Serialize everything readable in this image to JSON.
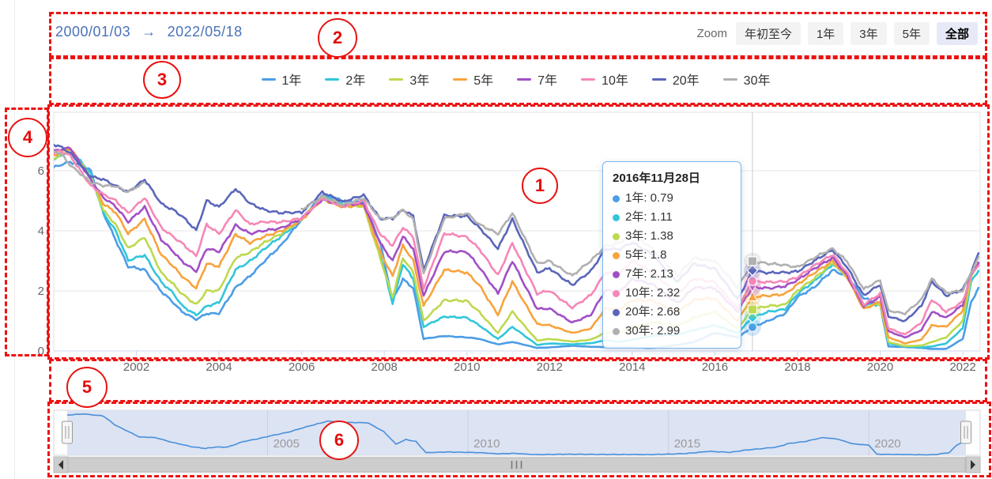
{
  "header": {
    "date_from": "2000/01/03",
    "arrow": "→",
    "date_to": "2022/05/18",
    "zoom_label": "Zoom",
    "zoom_buttons": [
      {
        "id": "ytd",
        "label": "年初至今",
        "selected": false
      },
      {
        "id": "1y",
        "label": "1年",
        "selected": false
      },
      {
        "id": "3y",
        "label": "3年",
        "selected": false
      },
      {
        "id": "5y",
        "label": "5年",
        "selected": false
      },
      {
        "id": "all",
        "label": "全部",
        "selected": true
      }
    ]
  },
  "annotations": {
    "labels": [
      "1",
      "2",
      "3",
      "4",
      "5",
      "6"
    ]
  },
  "chart_data": {
    "type": "line",
    "title": "",
    "xlabel": "",
    "ylabel": "",
    "x_axis": {
      "range": [
        2000.0,
        2022.42
      ],
      "ticks": [
        2002,
        2004,
        2006,
        2008,
        2010,
        2012,
        2014,
        2016,
        2018,
        2020,
        2022
      ]
    },
    "y_axis": {
      "range": [
        0,
        7.9
      ],
      "ticks": [
        0,
        2,
        4,
        6
      ]
    },
    "grid": "horizontal",
    "legend_position": "top-center",
    "x": [
      2000.0,
      2000.15,
      2000.4,
      2000.9,
      2001.2,
      2001.5,
      2001.8,
      2002.2,
      2002.6,
      2002.9,
      2003.1,
      2003.45,
      2003.7,
      2004.0,
      2004.4,
      2004.75,
      2005.1,
      2005.5,
      2006.0,
      2006.5,
      2007.0,
      2007.5,
      2007.9,
      2008.2,
      2008.45,
      2008.7,
      2008.95,
      2009.45,
      2010.0,
      2010.3,
      2010.75,
      2011.1,
      2011.7,
      2012.0,
      2012.55,
      2013.0,
      2013.35,
      2013.7,
      2014.0,
      2014.5,
      2015.1,
      2015.5,
      2016.0,
      2016.55,
      2016.91,
      2017.3,
      2017.7,
      2018.0,
      2018.4,
      2018.85,
      2019.2,
      2019.6,
      2020.0,
      2020.2,
      2020.6,
      2021.0,
      2021.25,
      2021.6,
      2022.0,
      2022.2,
      2022.38
    ],
    "series": [
      {
        "id": "y1",
        "name": "1年",
        "color": "#4c9de6",
        "values": [
          6.12,
          6.2,
          6.3,
          6.0,
          4.6,
          3.7,
          2.8,
          2.7,
          2.0,
          1.6,
          1.3,
          1.05,
          1.25,
          1.25,
          2.1,
          2.5,
          3.0,
          3.5,
          4.4,
          5.2,
          5.0,
          4.95,
          3.6,
          1.7,
          2.4,
          2.1,
          0.4,
          0.5,
          0.45,
          0.4,
          0.22,
          0.3,
          0.1,
          0.12,
          0.17,
          0.14,
          0.13,
          0.12,
          0.12,
          0.1,
          0.2,
          0.3,
          0.6,
          0.45,
          0.79,
          1.0,
          1.25,
          1.8,
          2.1,
          2.7,
          2.5,
          1.75,
          1.55,
          0.15,
          0.13,
          0.1,
          0.07,
          0.07,
          0.4,
          1.6,
          2.1
        ]
      },
      {
        "id": "y2",
        "name": "2年",
        "color": "#33c6da",
        "values": [
          6.38,
          6.5,
          6.7,
          5.9,
          4.6,
          4.0,
          3.0,
          3.2,
          2.3,
          1.9,
          1.5,
          1.2,
          1.5,
          1.6,
          2.7,
          3.0,
          3.4,
          3.8,
          4.4,
          5.15,
          4.9,
          4.85,
          3.2,
          1.6,
          2.9,
          2.4,
          0.8,
          1.15,
          1.1,
          0.85,
          0.4,
          0.8,
          0.2,
          0.25,
          0.22,
          0.26,
          0.35,
          0.3,
          0.38,
          0.5,
          0.55,
          0.7,
          0.85,
          0.6,
          1.11,
          1.3,
          1.4,
          1.9,
          2.3,
          2.9,
          2.5,
          1.55,
          1.55,
          0.25,
          0.14,
          0.12,
          0.15,
          0.25,
          0.75,
          2.3,
          2.67
        ]
      },
      {
        "id": "y3",
        "name": "3年",
        "color": "#bdd94e",
        "values": [
          6.42,
          6.5,
          6.7,
          5.8,
          4.7,
          4.2,
          3.4,
          3.8,
          2.6,
          2.2,
          1.9,
          1.55,
          2.0,
          2.0,
          3.1,
          3.3,
          3.6,
          3.9,
          4.4,
          5.1,
          4.85,
          4.8,
          3.1,
          1.8,
          3.1,
          2.6,
          1.0,
          1.7,
          1.65,
          1.3,
          0.6,
          1.3,
          0.35,
          0.4,
          0.31,
          0.38,
          0.6,
          0.6,
          0.77,
          0.95,
          0.85,
          1.1,
          1.3,
          0.75,
          1.38,
          1.5,
          1.55,
          2.0,
          2.4,
          2.95,
          2.45,
          1.45,
          1.6,
          0.3,
          0.16,
          0.18,
          0.3,
          0.45,
          1.0,
          2.5,
          2.86
        ]
      },
      {
        "id": "y5",
        "name": "5年",
        "color": "#f8a33d",
        "values": [
          6.5,
          6.6,
          6.75,
          5.75,
          4.9,
          4.6,
          3.9,
          4.4,
          3.2,
          2.8,
          2.5,
          2.1,
          2.9,
          2.8,
          3.9,
          3.6,
          3.8,
          4.0,
          4.35,
          5.05,
          4.8,
          4.85,
          3.3,
          2.5,
          3.5,
          3.0,
          1.5,
          2.7,
          2.6,
          2.2,
          1.2,
          2.3,
          0.9,
          0.85,
          0.6,
          0.75,
          1.4,
          1.4,
          1.7,
          1.65,
          1.3,
          1.7,
          1.75,
          1.0,
          1.8,
          1.85,
          1.9,
          2.2,
          2.6,
          3.0,
          2.45,
          1.4,
          1.65,
          0.45,
          0.25,
          0.38,
          0.85,
          0.8,
          1.35,
          2.55,
          2.89
        ]
      },
      {
        "id": "y7",
        "name": "7年",
        "color": "#a14fc6",
        "values": [
          6.65,
          6.7,
          6.75,
          5.7,
          5.1,
          4.8,
          4.3,
          4.8,
          3.7,
          3.3,
          3.0,
          2.65,
          3.4,
          3.3,
          4.2,
          3.9,
          4.0,
          4.1,
          4.4,
          5.05,
          4.85,
          4.9,
          3.6,
          3.0,
          3.8,
          3.4,
          1.85,
          3.3,
          3.3,
          2.8,
          1.9,
          3.0,
          1.4,
          1.4,
          0.95,
          1.2,
          2.0,
          2.0,
          2.4,
          2.2,
          1.6,
          2.1,
          2.1,
          1.3,
          2.13,
          2.1,
          2.15,
          2.35,
          2.75,
          3.1,
          2.5,
          1.5,
          1.8,
          0.65,
          0.45,
          0.7,
          1.3,
          1.1,
          1.55,
          2.6,
          2.93
        ]
      },
      {
        "id": "y10",
        "name": "10年",
        "color": "#f687b7",
        "values": [
          6.58,
          6.65,
          6.5,
          5.5,
          5.2,
          5.0,
          4.6,
          5.1,
          4.1,
          3.8,
          3.6,
          3.15,
          4.2,
          3.9,
          4.7,
          4.2,
          4.3,
          4.3,
          4.4,
          5.1,
          4.8,
          5.0,
          3.9,
          3.5,
          4.1,
          3.8,
          2.1,
          3.9,
          3.8,
          3.4,
          2.5,
          3.6,
          1.9,
          2.0,
          1.45,
          1.85,
          2.6,
          2.6,
          3.0,
          2.6,
          1.9,
          2.4,
          2.3,
          1.4,
          2.32,
          2.3,
          2.3,
          2.45,
          2.85,
          3.2,
          2.6,
          1.55,
          1.9,
          0.75,
          0.55,
          0.95,
          1.7,
          1.3,
          1.65,
          2.5,
          2.89
        ]
      },
      {
        "id": "y20",
        "name": "20年",
        "color": "#5a66bb",
        "values": [
          6.86,
          6.8,
          6.6,
          5.8,
          5.7,
          5.5,
          5.3,
          5.7,
          4.9,
          4.7,
          4.5,
          4.0,
          5.0,
          4.8,
          5.4,
          4.9,
          4.7,
          4.6,
          4.6,
          5.3,
          4.95,
          5.2,
          4.4,
          4.4,
          4.7,
          4.5,
          2.7,
          4.5,
          4.5,
          4.1,
          3.4,
          4.4,
          2.6,
          2.75,
          2.2,
          2.65,
          3.4,
          3.4,
          3.6,
          3.2,
          2.3,
          2.9,
          2.75,
          1.7,
          2.68,
          2.6,
          2.6,
          2.65,
          3.0,
          3.35,
          2.8,
          1.85,
          2.2,
          1.15,
          1.0,
          1.5,
          2.3,
          1.85,
          2.05,
          2.6,
          3.26
        ]
      },
      {
        "id": "y30",
        "name": "30年",
        "color": "#b0b0b0",
        "values": [
          6.63,
          6.6,
          6.2,
          5.6,
          5.5,
          5.5,
          5.3,
          5.6,
          null,
          null,
          null,
          null,
          null,
          null,
          null,
          null,
          null,
          null,
          4.7,
          5.15,
          4.85,
          5.1,
          4.4,
          4.4,
          4.7,
          4.4,
          2.55,
          4.4,
          4.6,
          4.2,
          3.9,
          4.6,
          2.9,
          3.0,
          2.5,
          3.0,
          3.5,
          3.6,
          3.9,
          3.4,
          2.5,
          3.1,
          3.0,
          2.1,
          2.99,
          2.9,
          2.85,
          2.8,
          3.1,
          3.4,
          3.0,
          2.05,
          2.35,
          1.35,
          1.25,
          1.7,
          2.4,
          1.95,
          2.0,
          2.6,
          3.1
        ]
      }
    ],
    "crosshair": {
      "x": 2016.91,
      "date_label": "2016年11月28日",
      "values": [
        0.79,
        1.11,
        1.38,
        1.8,
        2.13,
        2.32,
        2.68,
        2.99
      ]
    },
    "navigator": {
      "series": "1年",
      "labels": [
        2005,
        2010,
        2015,
        2020
      ],
      "range": [
        2000.0,
        2022.42
      ]
    }
  }
}
